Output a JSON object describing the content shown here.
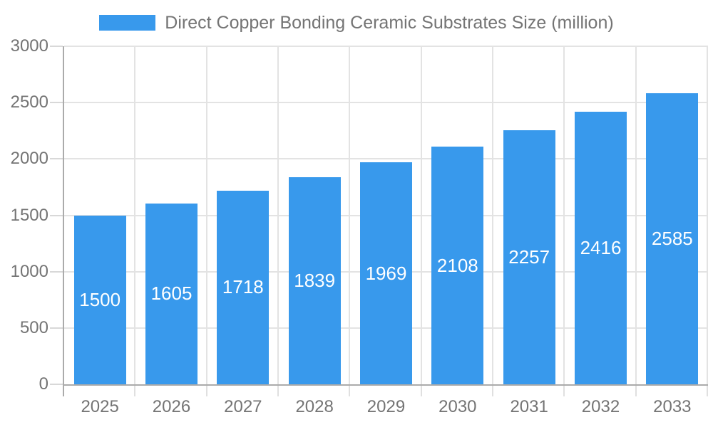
{
  "chart_data": {
    "type": "bar",
    "title": "Direct Copper Bonding Ceramic Substrates Size (million)",
    "categories": [
      "2025",
      "2026",
      "2027",
      "2028",
      "2029",
      "2030",
      "2031",
      "2032",
      "2033"
    ],
    "values": [
      1500,
      1605,
      1718,
      1839,
      1969,
      2108,
      2257,
      2416,
      2585
    ],
    "xlabel": "",
    "ylabel": "",
    "ylim": [
      0,
      3000
    ],
    "yticks": [
      0,
      500,
      1000,
      1500,
      2000,
      2500,
      3000
    ],
    "grid": true,
    "legend_position": "top-center",
    "value_labels": "inside-center"
  },
  "colors": {
    "bar": "#3899EC",
    "bar_label": "#FFFFFF",
    "axis_text": "#747474",
    "grid_line": "#E3E3E3",
    "axis_line": "#ABABAB",
    "y_tick": "#D8D8D8",
    "x_tick": "#E0E0E0",
    "background": "#FFFFFF"
  }
}
